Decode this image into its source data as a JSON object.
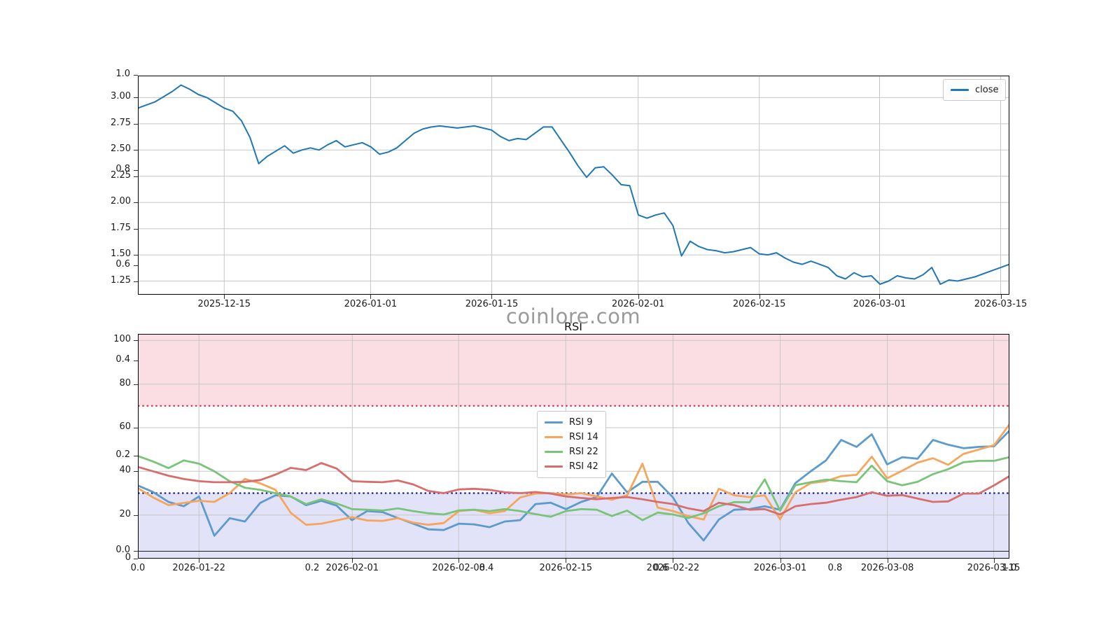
{
  "watermark": {
    "text": "coinlore.com",
    "color": "#9a9a9a"
  },
  "overlay_axis": {
    "y_tick_labels": [
      "1.0",
      "0.8",
      "0.6",
      "0.4",
      "0.2",
      "0.0"
    ],
    "x_tick_labels": [
      "0.0",
      "0.2",
      "0.4",
      "0.6",
      "0.8",
      "1.0"
    ]
  },
  "chart_data": [
    {
      "type": "line",
      "name": "price",
      "title": "",
      "grid": true,
      "ylim": [
        1.12,
        3.21
      ],
      "y_ticks": [
        3.0,
        2.75,
        2.5,
        2.25,
        2.0,
        1.75,
        1.5,
        1.25
      ],
      "y_tick_decimals": 2,
      "x_ticks": {
        "labels": [
          "2025-12-15",
          "2026-01-01",
          "2026-01-15",
          "2026-02-01",
          "2026-02-15",
          "2026-03-01",
          "2026-03-15"
        ],
        "frac": [
          0.099,
          0.267,
          0.406,
          0.574,
          0.713,
          0.851,
          0.99
        ]
      },
      "legend_position": "upper right",
      "x_start": "2025-12-05",
      "x_end": "2026-03-16",
      "series": [
        {
          "name": "close",
          "color": "#1f77b4",
          "width": 2,
          "values": [
            2.9,
            2.93,
            2.96,
            3.01,
            3.06,
            3.12,
            3.08,
            3.03,
            3.0,
            2.95,
            2.9,
            2.87,
            2.78,
            2.62,
            2.37,
            2.44,
            2.49,
            2.54,
            2.47,
            2.5,
            2.52,
            2.5,
            2.55,
            2.59,
            2.53,
            2.55,
            2.57,
            2.53,
            2.46,
            2.48,
            2.52,
            2.59,
            2.66,
            2.7,
            2.72,
            2.73,
            2.72,
            2.71,
            2.72,
            2.73,
            2.71,
            2.69,
            2.63,
            2.59,
            2.61,
            2.6,
            2.66,
            2.72,
            2.72,
            2.6,
            2.48,
            2.35,
            2.24,
            2.33,
            2.34,
            2.26,
            2.17,
            2.16,
            1.88,
            1.85,
            1.88,
            1.9,
            1.78,
            1.49,
            1.63,
            1.58,
            1.55,
            1.54,
            1.52,
            1.53,
            1.55,
            1.57,
            1.51,
            1.5,
            1.52,
            1.47,
            1.43,
            1.41,
            1.44,
            1.41,
            1.38,
            1.3,
            1.27,
            1.33,
            1.29,
            1.3,
            1.22,
            1.25,
            1.3,
            1.28,
            1.27,
            1.31,
            1.38,
            1.22,
            1.26,
            1.25,
            1.27,
            1.29,
            1.32,
            1.35,
            1.38,
            1.41
          ]
        }
      ]
    },
    {
      "type": "line",
      "name": "rsi",
      "title": "RSI",
      "grid": true,
      "ylim": [
        0,
        103
      ],
      "y_ticks": [
        100,
        80,
        60,
        40,
        20,
        0
      ],
      "y_tick_decimals": 0,
      "x_ticks": {
        "labels": [
          "2026-01-22",
          "2026-02-01",
          "2026-02-08",
          "2026-02-15",
          "2026-02-22",
          "2026-03-01",
          "2026-03-08",
          "2026-03-15"
        ],
        "frac": [
          0.07,
          0.246,
          0.368,
          0.491,
          0.614,
          0.737,
          0.86,
          0.982
        ]
      },
      "hspans": [
        {
          "from": 70,
          "to": 103,
          "color": "#fbdee3",
          "meaning": "overbought zone"
        },
        {
          "from": 0,
          "to": 30,
          "color": "#e2e2f8",
          "meaning": "oversold zone"
        }
      ],
      "hlines": [
        {
          "y": 70,
          "color": "#d23147",
          "style": "dotted"
        },
        {
          "y": 30,
          "color": "#16189e",
          "style": "dotted"
        }
      ],
      "legend_position": "center",
      "x_start": "2026-01-18",
      "x_end": "2026-03-16",
      "series": [
        {
          "name": "RSI 9",
          "color": "#5c9bce",
          "width": 2.8,
          "values": [
            33.5,
            30.5,
            26,
            24,
            28.5,
            10.5,
            18.5,
            17,
            25.5,
            29,
            28.5,
            24.5,
            26.5,
            24.3,
            17.6,
            21.8,
            21.3,
            18.6,
            16,
            13.4,
            13.1,
            16,
            15.7,
            14.4,
            17,
            17.6,
            25,
            25.6,
            22.7,
            26,
            28.2,
            39,
            30.4,
            35.2,
            35.2,
            28,
            16.3,
            8.3,
            17.9,
            22.4,
            22.7,
            24,
            22.4,
            34.6,
            40,
            45,
            54.4,
            51.2,
            57,
            43.2,
            46.5,
            45.8,
            54.4,
            52.2,
            50.6,
            51.2,
            51.5,
            58.6
          ]
        },
        {
          "name": "RSI 14",
          "color": "#f6a65c",
          "width": 2.8,
          "values": [
            32.3,
            28,
            24.5,
            25.5,
            26.5,
            26,
            30,
            36.5,
            34.5,
            31.5,
            21,
            15.5,
            16,
            17.5,
            19,
            17.5,
            17.3,
            18.5,
            16.5,
            15.5,
            16.3,
            21.8,
            22.4,
            20.8,
            21.8,
            28,
            29.8,
            30,
            29.5,
            30,
            28.5,
            27,
            29,
            43.5,
            23.4,
            21.8,
            19.5,
            17.9,
            32,
            29,
            28.2,
            29,
            18,
            30.4,
            34.6,
            35.5,
            37.8,
            38.4,
            46.7,
            36.8,
            40.3,
            44,
            46,
            43,
            48,
            50,
            52,
            61.5
          ]
        },
        {
          "name": "RSI 22",
          "color": "#7ac47a",
          "width": 2.8,
          "values": [
            47,
            44.5,
            41.5,
            45,
            43.5,
            40,
            35.5,
            32.5,
            31.5,
            30,
            28.5,
            25,
            27.2,
            25.3,
            22.7,
            22.4,
            22,
            23,
            21.8,
            20.8,
            20.2,
            22.1,
            22.4,
            21.8,
            22.7,
            21.8,
            20.4,
            19.2,
            21.8,
            22.7,
            22.4,
            19.5,
            22,
            17.6,
            21.1,
            20.2,
            18.6,
            20.8,
            24,
            25.9,
            25.8,
            36.3,
            22,
            33.6,
            35,
            36.2,
            35.5,
            35,
            42.6,
            35.5,
            33.6,
            35.2,
            38.7,
            41,
            44.2,
            44.8,
            44.8,
            46.5
          ]
        },
        {
          "name": "RSI 42",
          "color": "#d76e6c",
          "width": 2.8,
          "values": [
            42,
            40,
            38,
            36.5,
            35.5,
            35,
            35,
            35.2,
            36,
            38.5,
            41.6,
            40.6,
            43.8,
            41.3,
            35.5,
            35.2,
            35,
            35.8,
            34,
            31,
            30,
            31.7,
            32,
            31.5,
            30.4,
            30,
            30.5,
            29.8,
            28.5,
            27.8,
            27.2,
            27.8,
            28.2,
            27.2,
            26,
            25,
            23,
            21.8,
            25.6,
            24.5,
            22.4,
            22.7,
            20.2,
            24,
            25,
            25.6,
            27,
            28.2,
            30.4,
            28.8,
            29.1,
            27.5,
            26,
            26.2,
            29.8,
            29.8,
            33.6,
            37.8
          ]
        }
      ]
    }
  ]
}
